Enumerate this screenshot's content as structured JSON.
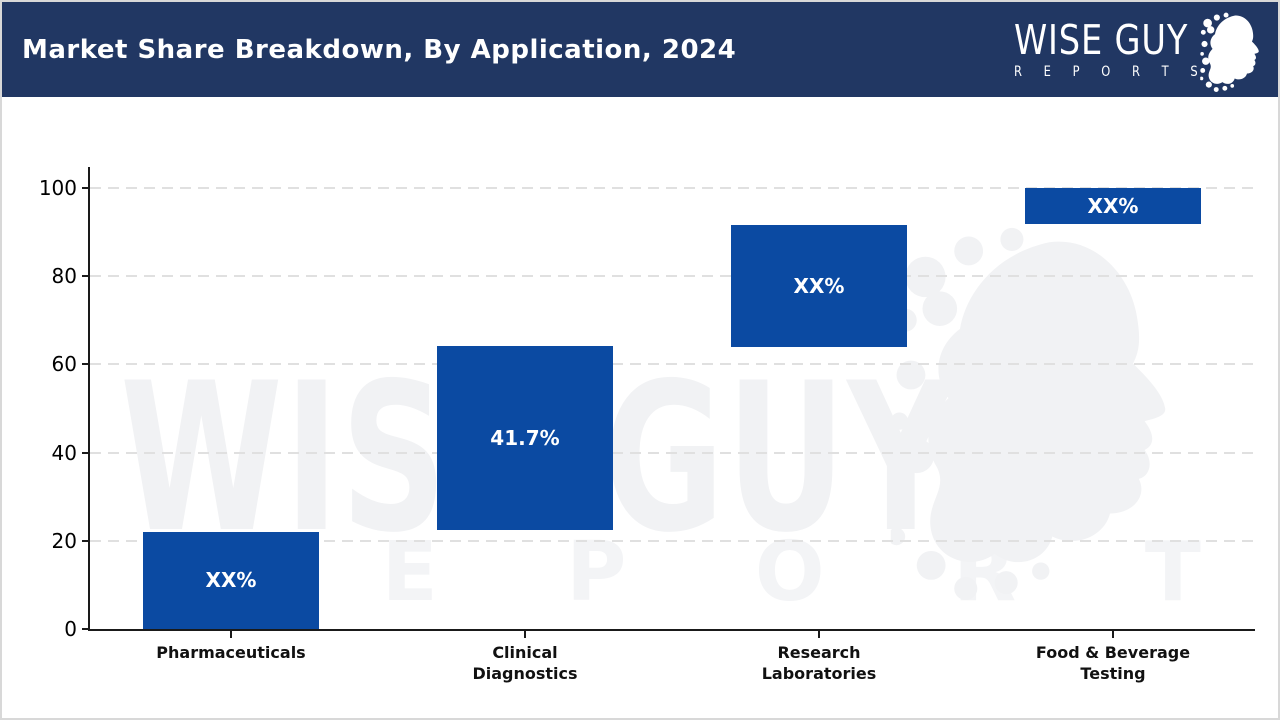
{
  "header": {
    "title": "Market Share Breakdown, By Application, 2024",
    "bg_color": "#213763",
    "logo": {
      "line1": "WISE GUY",
      "line2": "R E P O R T S"
    }
  },
  "watermark": {
    "line1": "WISE GUY",
    "line2": "R E P O R T S"
  },
  "chart_data": {
    "type": "bar",
    "variant": "floating-segment-waterfall",
    "title": "Market Share Breakdown, By Application, 2024",
    "categories": [
      [
        "Pharmaceuticals"
      ],
      [
        "Clinical",
        "Diagnostics"
      ],
      [
        "Research",
        "Laboratories"
      ],
      [
        "Food & Beverage",
        "Testing"
      ]
    ],
    "segments": [
      {
        "category": "Pharmaceuticals",
        "from": 0,
        "to": 22.1,
        "label": "XX%"
      },
      {
        "category": "Clinical Diagnostics",
        "from": 22.4,
        "to": 64.1,
        "label": "41.7%"
      },
      {
        "category": "Research Laboratories",
        "from": 63.9,
        "to": 91.6,
        "label": "XX%"
      },
      {
        "category": "Food & Beverage Testing",
        "from": 91.8,
        "to": 100,
        "label": "XX%"
      }
    ],
    "yticks": [
      0,
      20,
      40,
      60,
      80,
      100
    ],
    "ylim": [
      0,
      105
    ],
    "xlabel": "",
    "ylabel": "",
    "bar_color": "#0b4aa2",
    "grid": "horizontal-dashed",
    "legend": "none"
  }
}
